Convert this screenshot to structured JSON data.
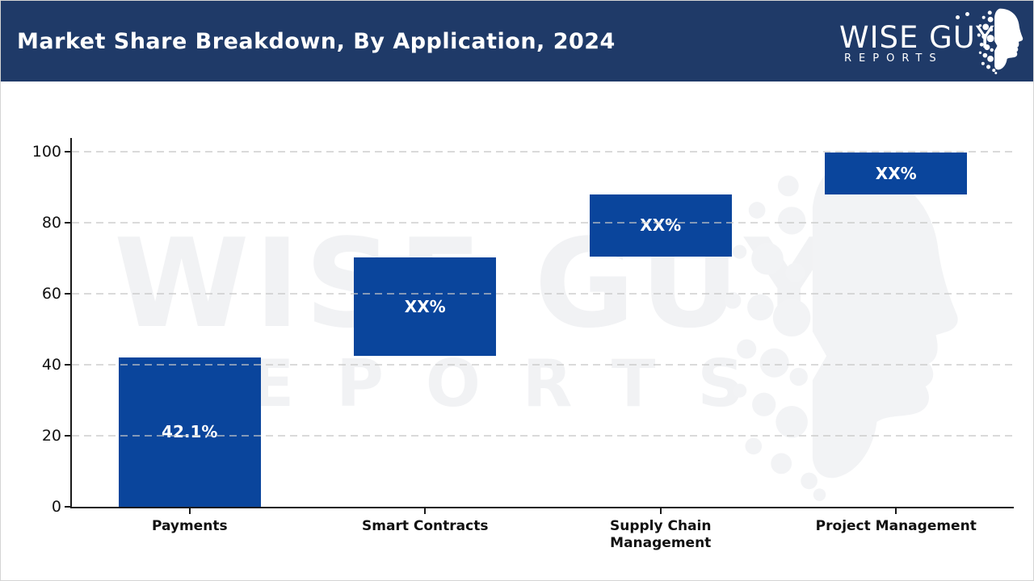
{
  "header": {
    "title": "Market Share Breakdown, By Application, 2024",
    "logo": {
      "line1": "WISE GUY",
      "line2": "REPORTS"
    }
  },
  "watermark": {
    "line1": "WISE GUY",
    "line2": "REPORTS"
  },
  "colors": {
    "header_bg": "#1f3a68",
    "bar": "#0a459c",
    "gridline": "#d9d9d9",
    "axis": "#1a1a1a",
    "bar_value_text": "#ffffff",
    "watermark_text": "#f1f2f4",
    "page_border": "#d4d4d4"
  },
  "chart_data": {
    "type": "bar",
    "subtype": "floating-stacked-segments",
    "title": "Market Share Breakdown, By Application, 2024",
    "categories": [
      "Payments",
      "Smart Contracts",
      "Supply Chain Management",
      "Project Management"
    ],
    "segments": [
      {
        "category": "Payments",
        "start": 0,
        "end": 42.1,
        "label": "42.1%"
      },
      {
        "category": "Smart Contracts",
        "start": 42.5,
        "end": 70.2,
        "label": "XX%"
      },
      {
        "category": "Supply Chain Management",
        "start": 70.5,
        "end": 88.0,
        "label": "XX%"
      },
      {
        "category": "Project Management",
        "start": 88.0,
        "end": 99.8,
        "label": "XX%"
      }
    ],
    "xlabel": "",
    "ylabel": "",
    "ylim": [
      0,
      100
    ],
    "yticks": [
      0,
      20,
      40,
      60,
      80,
      100
    ],
    "grid": "dashed-horizontal",
    "legend": "none",
    "bar_color": "#0a459c"
  }
}
